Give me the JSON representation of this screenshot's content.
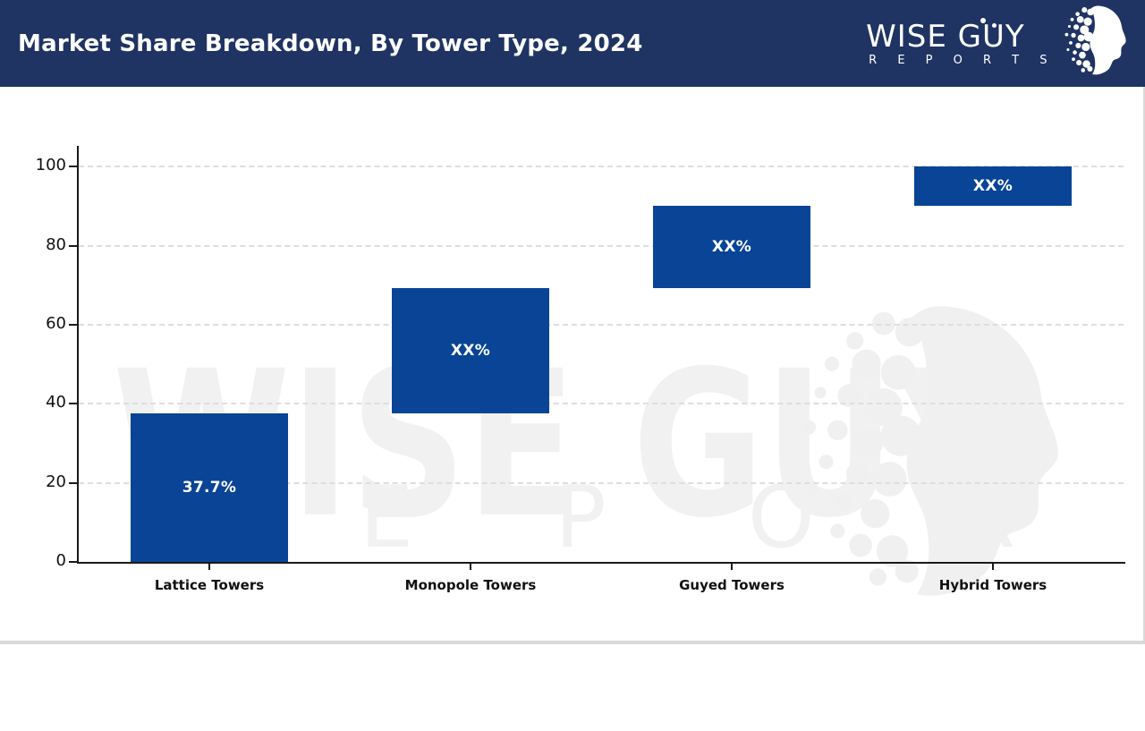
{
  "header": {
    "title": "Market Share Breakdown, By Tower Type, 2024",
    "brand": {
      "line1": "WISE GUY",
      "line2": "R E P O R T S"
    }
  },
  "watermark": {
    "line1": "WISE GUY",
    "line2": "R E P O R T S"
  },
  "colors": {
    "header_bg": "#1f3463",
    "bar": "#0a4496",
    "grid": "#dedede",
    "axis": "#1a1a1a",
    "bar_label": "#ffffff",
    "watermark": "#f1f1f2"
  },
  "chart_data": {
    "type": "bar",
    "subtype": "waterfall",
    "title": "Market Share Breakdown, By Tower Type, 2024",
    "categories": [
      "Lattice Towers",
      "Monopole Towers",
      "Guyed Towers",
      "Hybrid Towers"
    ],
    "segments": [
      {
        "category": "Lattice Towers",
        "start": 0,
        "end": 37.7,
        "label": "37.7%"
      },
      {
        "category": "Monopole Towers",
        "start": 37.7,
        "end": 69.3,
        "label": "XX%"
      },
      {
        "category": "Guyed Towers",
        "start": 69.3,
        "end": 90.1,
        "label": "XX%"
      },
      {
        "category": "Hybrid Towers",
        "start": 90.1,
        "end": 100,
        "label": "XX%"
      }
    ],
    "yticks": [
      0,
      20,
      40,
      60,
      80,
      100
    ],
    "ylim": [
      0,
      105.3
    ],
    "xlabel": "",
    "ylabel": "",
    "grid": "horizontal-dashed",
    "legend": "none",
    "bar_color": "#0a4496"
  }
}
